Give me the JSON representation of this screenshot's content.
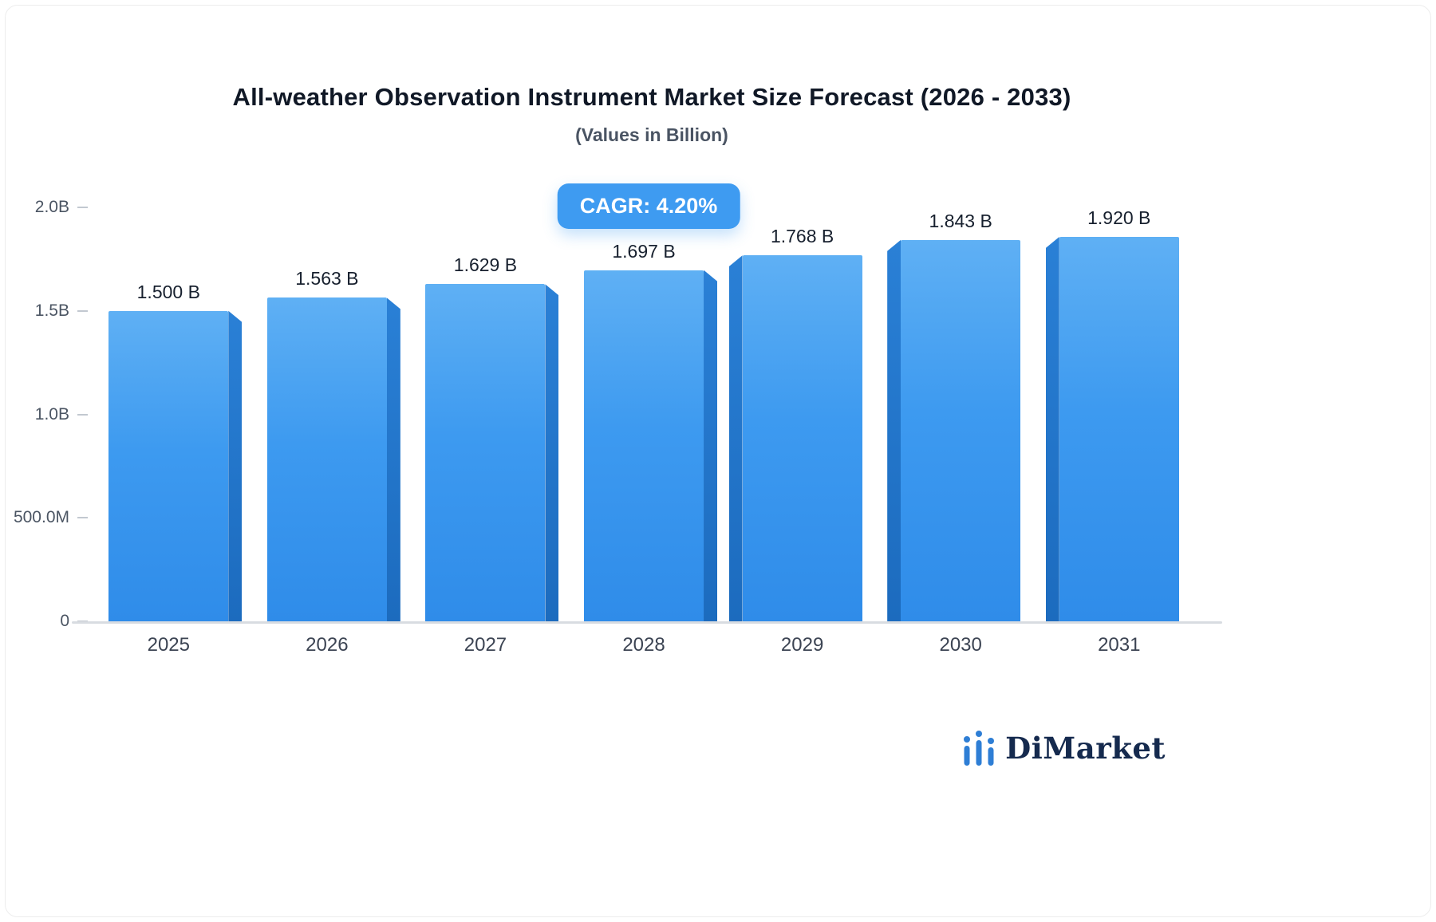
{
  "header": {
    "title": "All-weather Observation Instrument Market Size Forecast (2026 - 2033)",
    "subtitle": "(Values in Billion)"
  },
  "badge": {
    "label": "CAGR: 4.20%"
  },
  "brand": {
    "name": "DiMarket",
    "icon": "bar-chart-icon"
  },
  "colors": {
    "bar_main": "#3D9AF0",
    "bar_side": "#1F6FC2",
    "badge_bg": "#3E9BF1",
    "brand_icon": "#2E7ED5",
    "brand_text": "#152A4E",
    "baseline": "#D8DCE1"
  },
  "chart_data": {
    "type": "bar",
    "title": "All-weather Observation Instrument Market Size Forecast (2026 - 2033)",
    "subtitle": "(Values in Billion)",
    "annotation": "CAGR: 4.20%",
    "categories": [
      "2025",
      "2026",
      "2027",
      "2028",
      "2029",
      "2030",
      "2031"
    ],
    "values": [
      1.5,
      1.563,
      1.629,
      1.697,
      1.768,
      1.843,
      1.92
    ],
    "value_labels": [
      "1.500 B",
      "1.563 B",
      "1.629 B",
      "1.697 B",
      "1.768 B",
      "1.843 B",
      "1.920 B"
    ],
    "unit": "Billion",
    "xlabel": "",
    "ylabel": "",
    "ylim": [
      0,
      2.0
    ],
    "yticks": [
      {
        "label": "2.0B",
        "value": 2.0
      },
      {
        "label": "1.5B",
        "value": 1.5
      },
      {
        "label": "1.0B",
        "value": 1.0
      },
      {
        "label": "500.0M",
        "value": 0.5
      },
      {
        "label": "0",
        "value": 0
      }
    ],
    "grid": false,
    "legend": false
  }
}
